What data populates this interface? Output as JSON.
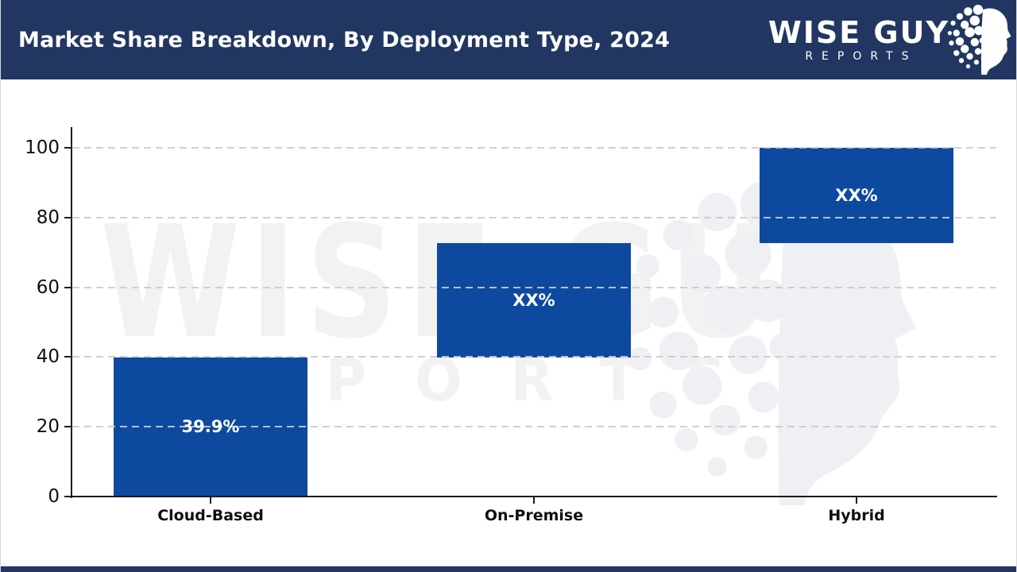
{
  "header": {
    "title": "Market Share Breakdown, By Deployment Type, 2024",
    "logo": {
      "line1": "WISE GUY",
      "line2": "REPORTS"
    }
  },
  "watermark": {
    "line1": "WISE GUY",
    "line2": "REPORTS"
  },
  "chart_data": {
    "type": "bar",
    "subtype": "floating-waterfall-segments",
    "title": "Market Share Breakdown, By Deployment Type, 2024",
    "categories": [
      "Cloud-Based",
      "On-Premise",
      "Hybrid"
    ],
    "segments": [
      {
        "category": "Cloud-Based",
        "start": 0,
        "end": 39.9,
        "label": "39.9%"
      },
      {
        "category": "On-Premise",
        "start": 39.9,
        "end": 72.7,
        "label": "XX%"
      },
      {
        "category": "Hybrid",
        "start": 72.7,
        "end": 100,
        "label": "XX%"
      }
    ],
    "yticks": [
      0,
      20,
      40,
      60,
      80,
      100
    ],
    "ylim": [
      0,
      105
    ],
    "xlabel": "",
    "ylabel": "",
    "grid": "horizontal-dashed",
    "legend": "none",
    "bar_color": "#0d4a9f",
    "bar_label_color": "#ffffff",
    "header_color": "#213761"
  }
}
